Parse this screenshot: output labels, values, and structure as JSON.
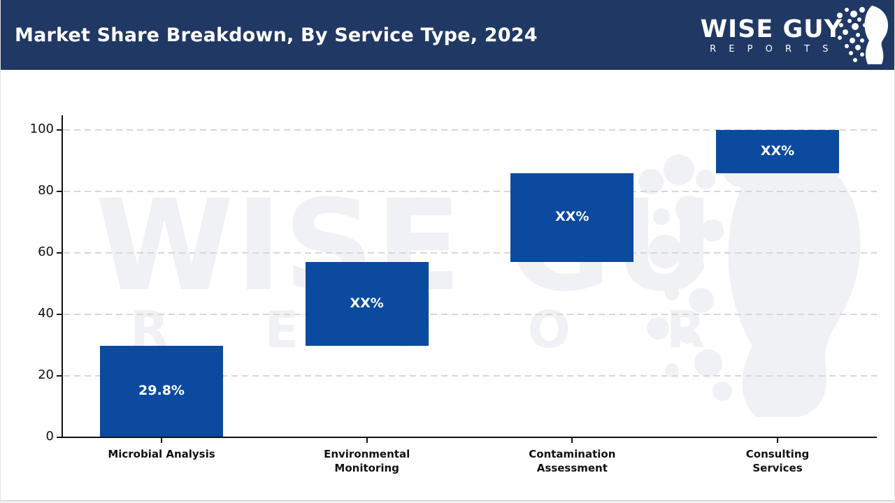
{
  "header": {
    "title": "Market Share Breakdown, By Service Type, 2024",
    "logo": {
      "line1": "WISE GUY",
      "line2": "R E P O R T S"
    }
  },
  "watermark": {
    "line1": "WISE GU",
    "line2": "R E P O R T S"
  },
  "colors": {
    "header_bg": "#203864",
    "bar": "#0b4a9e",
    "bar_label": "#ffffff",
    "grid": "#d7d7d7",
    "axis": "#111111",
    "watermark": "#f0f1f4"
  },
  "chart_data": {
    "type": "bar",
    "subtype": "waterfall",
    "title": "Market Share Breakdown, By Service Type, 2024",
    "xlabel": "",
    "ylabel": "",
    "ylim": [
      0,
      100
    ],
    "yticks": [
      0,
      20,
      40,
      60,
      80,
      100
    ],
    "grid": "horizontal dashed",
    "legend": "none",
    "categories": [
      "Microbial Analysis",
      "Environmental\nMonitoring",
      "Contamination\nAssessment",
      "Consulting\nServices"
    ],
    "segments": [
      {
        "category": "Microbial Analysis",
        "start": 0,
        "end": 29.8,
        "label": "29.8%"
      },
      {
        "category": "Environmental Monitoring",
        "start": 29.8,
        "end": 57,
        "label": "XX%"
      },
      {
        "category": "Contamination Assessment",
        "start": 57,
        "end": 86,
        "label": "XX%"
      },
      {
        "category": "Consulting Services",
        "start": 86,
        "end": 100,
        "label": "XX%"
      }
    ]
  }
}
